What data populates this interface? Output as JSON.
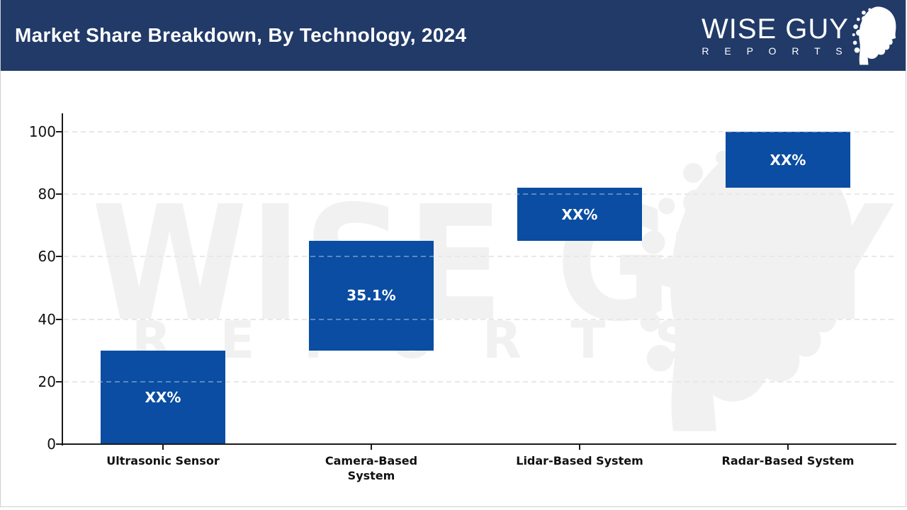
{
  "header": {
    "title": "Market Share Breakdown, By Technology, 2024",
    "logo": {
      "brand": "WISE GUY",
      "sub": "R E P O R T S"
    }
  },
  "watermark": {
    "line1": "WISE GUY",
    "line2": "R E P O R T S"
  },
  "chart_data": {
    "type": "bar",
    "subtype": "waterfall",
    "title": "Market Share Breakdown, By Technology, 2024",
    "xlabel": "",
    "ylabel": "",
    "categories": [
      "Ultrasonic Sensor",
      "Camera-Based System",
      "Lidar-Based System",
      "Radar-Based System"
    ],
    "category_label_lines": [
      [
        "Ultrasonic Sensor"
      ],
      [
        "Camera-Based",
        "System"
      ],
      [
        "Lidar-Based System"
      ],
      [
        "Radar-Based System"
      ]
    ],
    "segments": [
      {
        "category": "Ultrasonic Sensor",
        "start": 0,
        "end": 30,
        "label": "XX%"
      },
      {
        "category": "Camera-Based System",
        "start": 30,
        "end": 65.1,
        "label": "35.1%"
      },
      {
        "category": "Lidar-Based System",
        "start": 65.1,
        "end": 82,
        "label": "XX%"
      },
      {
        "category": "Radar-Based System",
        "start": 82,
        "end": 100,
        "label": "XX%"
      }
    ],
    "y_ticks": [
      0,
      20,
      40,
      60,
      80,
      100
    ],
    "ylim": [
      0,
      106
    ],
    "grid": "horizontal-dashed",
    "legend": "none",
    "bar_color": "#0a4da2",
    "bar_label_color": "#ffffff"
  },
  "colors": {
    "header_bg": "#213a68",
    "bar": "#0a4da2",
    "grid": "#dcdcdc",
    "axis": "#1a1a1a",
    "watermark": "#f1f1f1",
    "page_border": "#cfcfcf"
  }
}
